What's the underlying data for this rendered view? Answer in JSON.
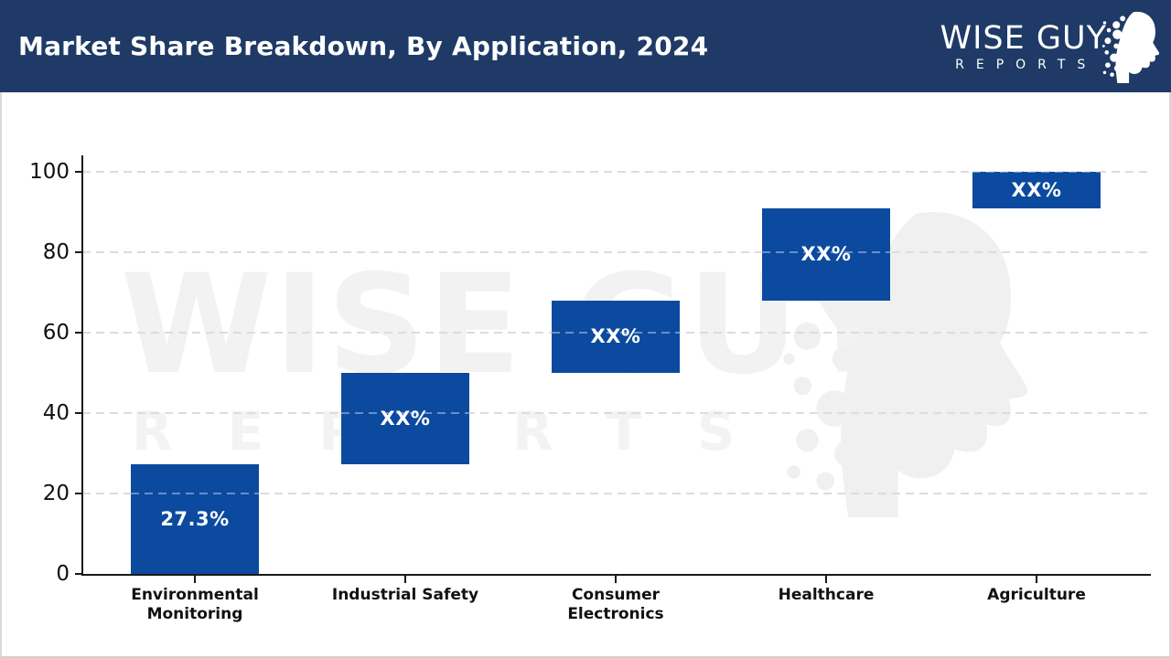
{
  "header": {
    "title": "Market Share Breakdown, By Application, 2024",
    "brand": {
      "line1": "WISE GUY",
      "line2": "REPORTS"
    }
  },
  "watermark": {
    "line1": "WISE GUY",
    "line2": "REPORTS"
  },
  "colors": {
    "header_bg": "#1f3a66",
    "bar": "#0b4a9f",
    "bar_label": "#ffffff",
    "axis": "#1a1a1a",
    "gridline": "#dcdcdc",
    "watermark": "#f2f2f2",
    "page_border": "#d9d9d9"
  },
  "chart_data": {
    "type": "bar",
    "subtype": "floating-waterfall",
    "orientation": "vertical",
    "title": "Market Share Breakdown, By Application, 2024",
    "xlabel": "",
    "ylabel": "",
    "ylim": [
      0,
      104
    ],
    "yticks": [
      0,
      20,
      40,
      60,
      80,
      100
    ],
    "grid": "horizontal-dashed",
    "legend": "none",
    "categories": [
      "Environmental Monitoring",
      "Industrial Safety",
      "Consumer Electronics",
      "Healthcare",
      "Agriculture"
    ],
    "category_lines": [
      [
        "Environmental",
        "Monitoring"
      ],
      [
        "Industrial Safety"
      ],
      [
        "Consumer",
        "Electronics"
      ],
      [
        "Healthcare"
      ],
      [
        "Agriculture"
      ]
    ],
    "bars": [
      {
        "category": "Environmental Monitoring",
        "from": 0,
        "to": 27.3,
        "label": "27.3%"
      },
      {
        "category": "Industrial Safety",
        "from": 27.3,
        "to": 50,
        "label": "XX%"
      },
      {
        "category": "Consumer Electronics",
        "from": 50,
        "to": 68,
        "label": "XX%"
      },
      {
        "category": "Healthcare",
        "from": 68,
        "to": 91,
        "label": "XX%"
      },
      {
        "category": "Agriculture",
        "from": 91,
        "to": 100,
        "label": "XX%"
      }
    ]
  }
}
